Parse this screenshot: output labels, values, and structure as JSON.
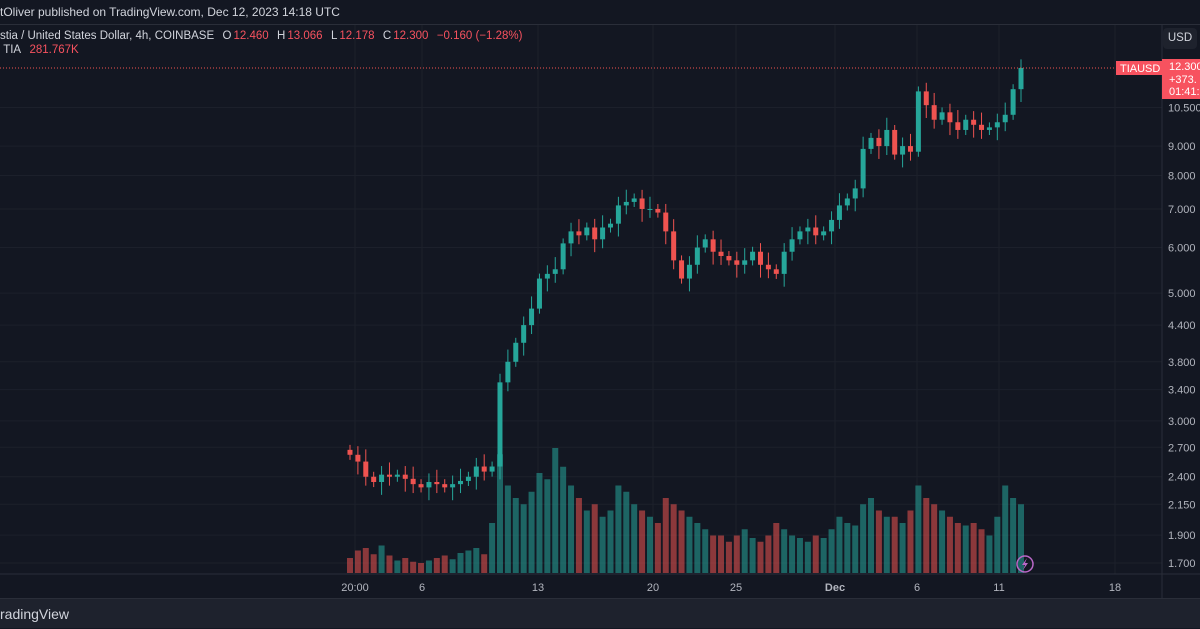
{
  "header": {
    "published": "tOliver published on TradingView.com, Dec 12, 2023 14:18 UTC"
  },
  "legend": {
    "symbol": "stia / United States Dollar, 4h, COINBASE",
    "o_label": "O",
    "o": "12.460",
    "h_label": "H",
    "h": "13.066",
    "l_label": "L",
    "l": "12.178",
    "c_label": "C",
    "c": "12.300",
    "change": "−0.160 (−1.28%)",
    "vol_label": "TIA",
    "vol": "281.767K"
  },
  "currency_button": "USD",
  "price_tag": {
    "symbol": "TIAUSD",
    "price": "12.300",
    "change": "+373.",
    "countdown": "01:41:"
  },
  "footer": {
    "brand": "radingView"
  },
  "colors": {
    "up": "#26a69a",
    "down": "#ef5350",
    "bg": "#131722"
  },
  "chart_data": {
    "type": "candlestick",
    "scale": "log",
    "price_ticks": [
      "10.500",
      "9.000",
      "8.000",
      "7.000",
      "6.000",
      "5.000",
      "4.400",
      "3.800",
      "3.400",
      "3.000",
      "2.700",
      "2.400",
      "2.150",
      "1.900",
      "1.700"
    ],
    "time_ticks": [
      "20:00",
      "6",
      "13",
      "20",
      "25",
      "Dec",
      "6",
      "11",
      "18"
    ],
    "closes": [
      2.62,
      2.55,
      2.4,
      2.35,
      2.42,
      2.4,
      2.42,
      2.38,
      2.33,
      2.3,
      2.35,
      2.33,
      2.3,
      2.33,
      2.36,
      2.4,
      2.5,
      2.45,
      2.5,
      3.5,
      3.8,
      4.1,
      4.4,
      4.7,
      5.3,
      5.4,
      5.5,
      6.1,
      6.4,
      6.3,
      6.5,
      6.2,
      6.5,
      6.6,
      7.1,
      7.2,
      7.3,
      7.0,
      7.0,
      6.9,
      6.4,
      5.7,
      5.3,
      5.6,
      6.0,
      6.2,
      5.9,
      5.8,
      5.7,
      5.6,
      5.7,
      5.9,
      5.6,
      5.5,
      5.4,
      5.9,
      6.2,
      6.4,
      6.5,
      6.3,
      6.4,
      6.7,
      7.1,
      7.3,
      7.6,
      8.9,
      9.3,
      9.0,
      9.6,
      8.7,
      9.0,
      8.8,
      11.2,
      10.6,
      10.0,
      10.3,
      9.9,
      9.6,
      10.0,
      9.8,
      9.6,
      9.7,
      9.9,
      10.2,
      11.3,
      12.3
    ],
    "volumes": [
      12,
      18,
      20,
      15,
      22,
      14,
      10,
      12,
      9,
      8,
      10,
      12,
      14,
      11,
      16,
      18,
      20,
      15,
      40,
      95,
      70,
      60,
      55,
      65,
      80,
      75,
      100,
      85,
      70,
      60,
      50,
      55,
      45,
      50,
      70,
      65,
      55,
      50,
      45,
      40,
      60,
      55,
      50,
      45,
      40,
      35,
      30,
      30,
      25,
      30,
      35,
      28,
      25,
      30,
      40,
      35,
      30,
      28,
      25,
      30,
      28,
      35,
      45,
      40,
      38,
      55,
      60,
      50,
      45,
      45,
      40,
      50,
      70,
      60,
      55,
      50,
      45,
      40,
      38,
      40,
      35,
      30,
      45,
      70,
      60,
      55
    ]
  }
}
